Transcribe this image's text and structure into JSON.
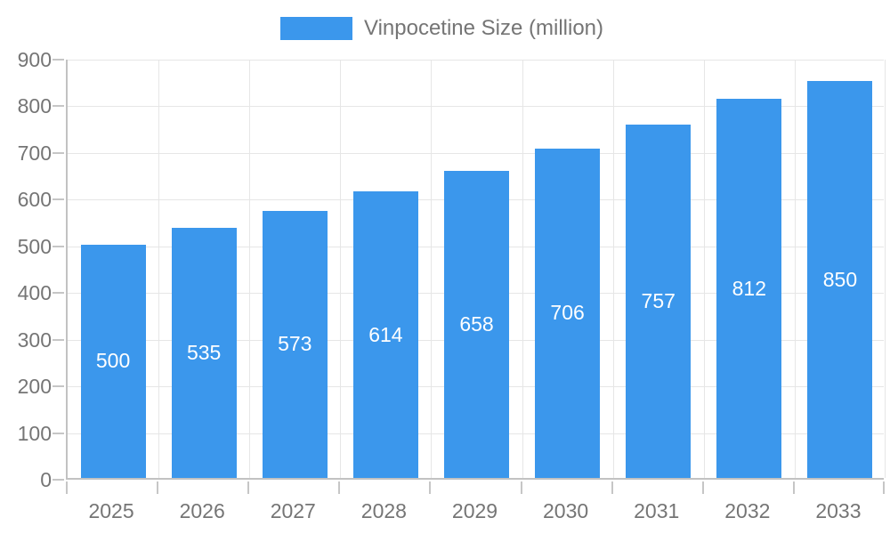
{
  "legend": {
    "label": "Vinpocetine Size (million)"
  },
  "colors": {
    "bar": "#3b97ec",
    "grid": "#e6e6e6",
    "axis": "#c2c2c2",
    "tick": "#c6c6c6",
    "label": "#757575",
    "value_label": "#ffffff"
  },
  "chart_data": {
    "type": "bar",
    "title": "",
    "categories": [
      "2025",
      "2026",
      "2027",
      "2028",
      "2029",
      "2030",
      "2031",
      "2032",
      "2033"
    ],
    "series": [
      {
        "name": "Vinpocetine Size (million)",
        "values": [
          500,
          535,
          573,
          614,
          658,
          706,
          757,
          812,
          850
        ]
      }
    ],
    "xlabel": "",
    "ylabel": "",
    "ylim": [
      0,
      900
    ],
    "ytick_step": 100,
    "grid": true,
    "legend_position": "top",
    "bar_value_labels": true
  }
}
